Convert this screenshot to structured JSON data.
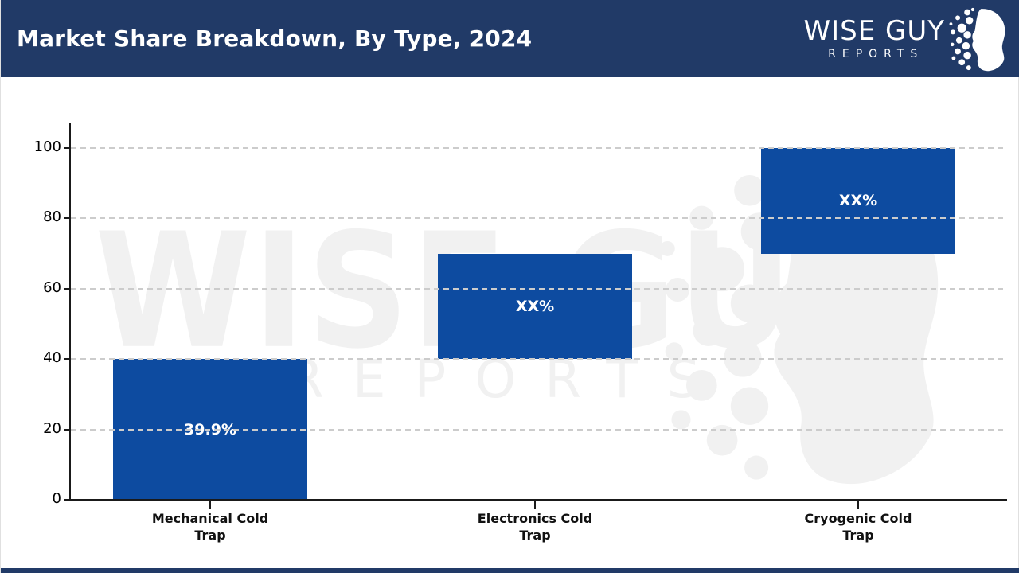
{
  "header": {
    "title": "Market Share Breakdown, By Type, 2024",
    "bg_color": "#213A67",
    "logo": {
      "line1": "WISE GUY",
      "line2": "REPORTS",
      "face_icon": "dotted-head-profile"
    }
  },
  "watermark": {
    "line1": "WISE GUY",
    "line2": "REPORTS",
    "color": "#f1f1f1"
  },
  "footer": {
    "bg_color": "#213A67"
  },
  "chart_data": {
    "type": "bar",
    "subtype": "floating-segment-percent-breakdown",
    "title": "Market Share Breakdown, By Type, 2024",
    "categories": [
      "Mechanical Cold Trap",
      "Electronics Cold Trap",
      "Cryogenic Cold Trap"
    ],
    "category_label_lines": [
      [
        "Mechanical Cold",
        "Trap"
      ],
      [
        "Electronics Cold",
        "Trap"
      ],
      [
        "Cryogenic Cold",
        "Trap"
      ]
    ],
    "segments": [
      {
        "category": "Mechanical Cold Trap",
        "start": 0,
        "end": 40,
        "label": "39.9%"
      },
      {
        "category": "Electronics Cold Trap",
        "start": 40,
        "end": 70,
        "label": "XX%"
      },
      {
        "category": "Cryogenic Cold Trap",
        "start": 70,
        "end": 100,
        "label": "XX%"
      }
    ],
    "xlabel": "",
    "ylabel": "",
    "yticks": [
      0,
      20,
      40,
      60,
      80,
      100
    ],
    "ylim": [
      0,
      106
    ],
    "grid": "horizontal dashed, drawn over bars",
    "bar_color": "#0D4BA0",
    "bar_label_color": "#ffffff",
    "legend": "none"
  }
}
